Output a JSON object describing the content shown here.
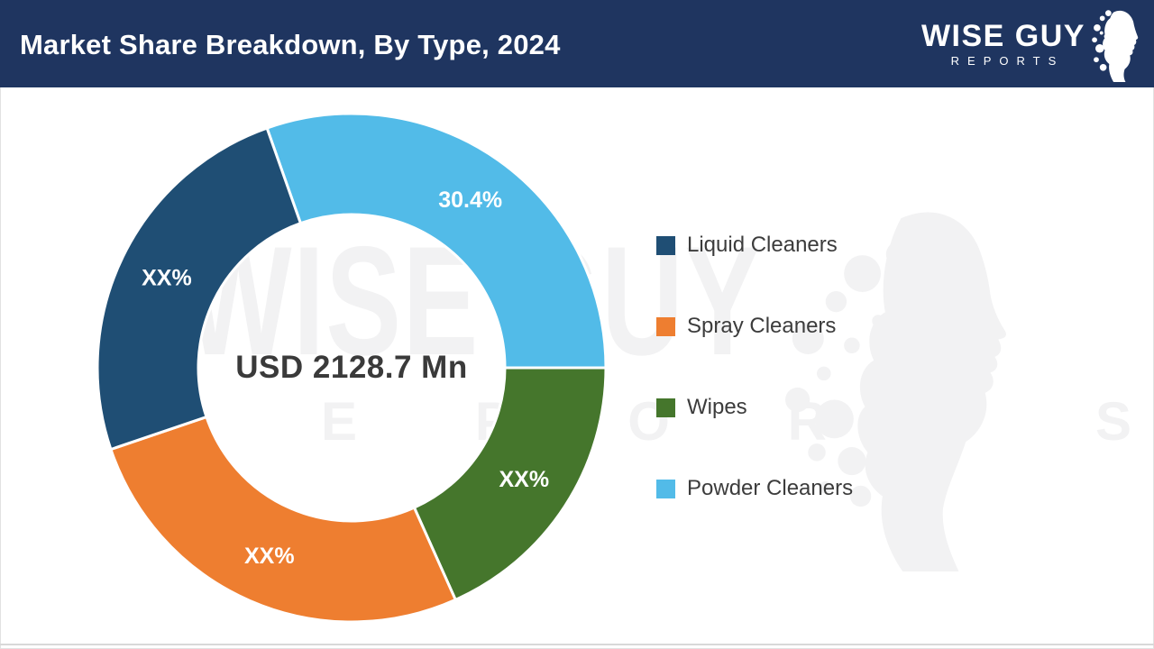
{
  "header": {
    "title": "Market Share Breakdown, By Type, 2024",
    "logo": {
      "line1": "WISE GUY",
      "line2": "REPORTS"
    },
    "bg_color": "#1f3560"
  },
  "chart_data": {
    "type": "donut",
    "title": "Market Share Breakdown, By Type, 2024",
    "center_label": "USD 2128.7 Mn",
    "start_angle_deg": -19.44,
    "segments": [
      {
        "label": "Powder Cleaners",
        "value_pct": 30.4,
        "display_label": "30.4%",
        "color": "#52bbe8"
      },
      {
        "label": "Wipes",
        "value_pct": 18.3,
        "display_label": "XX%",
        "color": "#45762c"
      },
      {
        "label": "Spray Cleaners",
        "value_pct": 26.5,
        "display_label": "XX%",
        "color": "#ee7e30"
      },
      {
        "label": "Liquid Cleaners",
        "value_pct": 24.8,
        "display_label": "XX%",
        "color": "#1f4e74"
      }
    ],
    "legend_position": "right",
    "label_color": "#ffffff"
  },
  "legend": {
    "items": [
      {
        "label": "Liquid Cleaners",
        "color": "#1f4e74"
      },
      {
        "label": "Spray Cleaners",
        "color": "#ee7e30"
      },
      {
        "label": "Wipes",
        "color": "#45762c"
      },
      {
        "label": "Powder Cleaners",
        "color": "#52bbe8"
      }
    ]
  },
  "watermark": {
    "line1": "WISE GUY",
    "line2": "REPORTS"
  }
}
